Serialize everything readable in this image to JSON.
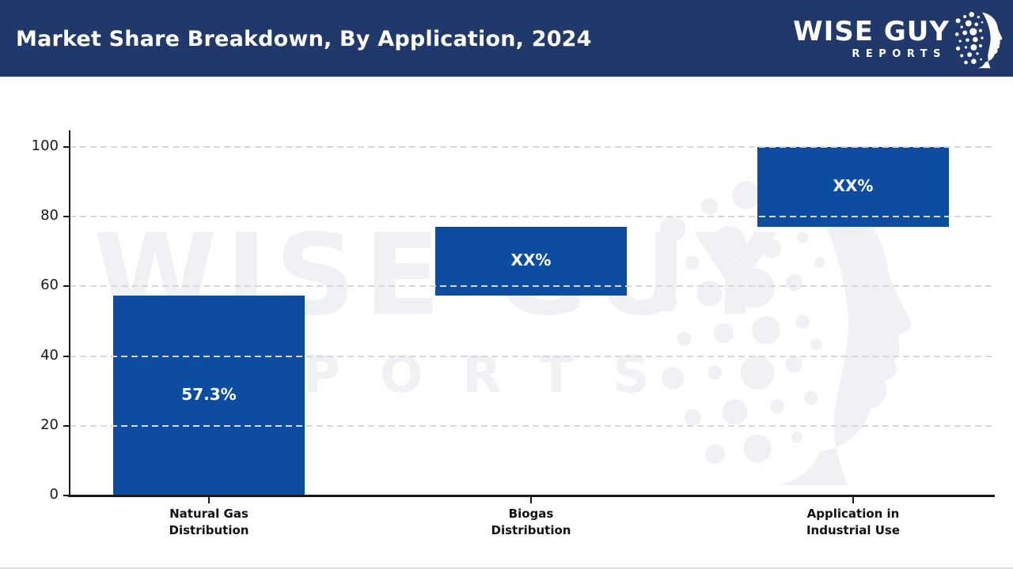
{
  "header": {
    "title": "Market Share Breakdown, By Application, 2024",
    "logo": {
      "line1": "WISE GUY",
      "line2": "REPORTS"
    }
  },
  "watermark": {
    "line1": "WISE GUY",
    "line2": "REPORTS"
  },
  "chart_data": {
    "type": "bar",
    "subtype": "floating-stacked-segments",
    "title": "Market Share Breakdown, By Application, 2024",
    "categories": [
      "Natural Gas Distribution",
      "Biogas Distribution",
      "Application in Industrial Use"
    ],
    "category_lines": [
      [
        "Natural Gas",
        "Distribution"
      ],
      [
        "Biogas",
        "Distribution"
      ],
      [
        "Application in",
        "Industrial Use"
      ]
    ],
    "segments": [
      {
        "category": "Natural Gas Distribution",
        "from": 0,
        "to": 57.3,
        "label": "57.3%"
      },
      {
        "category": "Biogas Distribution",
        "from": 57.3,
        "to": 77,
        "label": "XX%"
      },
      {
        "category": "Application in Industrial Use",
        "from": 77,
        "to": 100,
        "label": "XX%"
      }
    ],
    "ylim": [
      0,
      100
    ],
    "yticks": [
      0,
      20,
      40,
      60,
      80,
      100
    ],
    "xlabel": "",
    "ylabel": "",
    "grid": "horizontal-dashed",
    "legend": "none"
  },
  "colors": {
    "header_bg": "#20386a",
    "bar": "#0c4da2",
    "bar_label": "#ffffff",
    "grid": "#d8d8d8",
    "axis": "#1a1a1a",
    "watermark": "#f0f1f4",
    "title_text": "#ffffff"
  }
}
